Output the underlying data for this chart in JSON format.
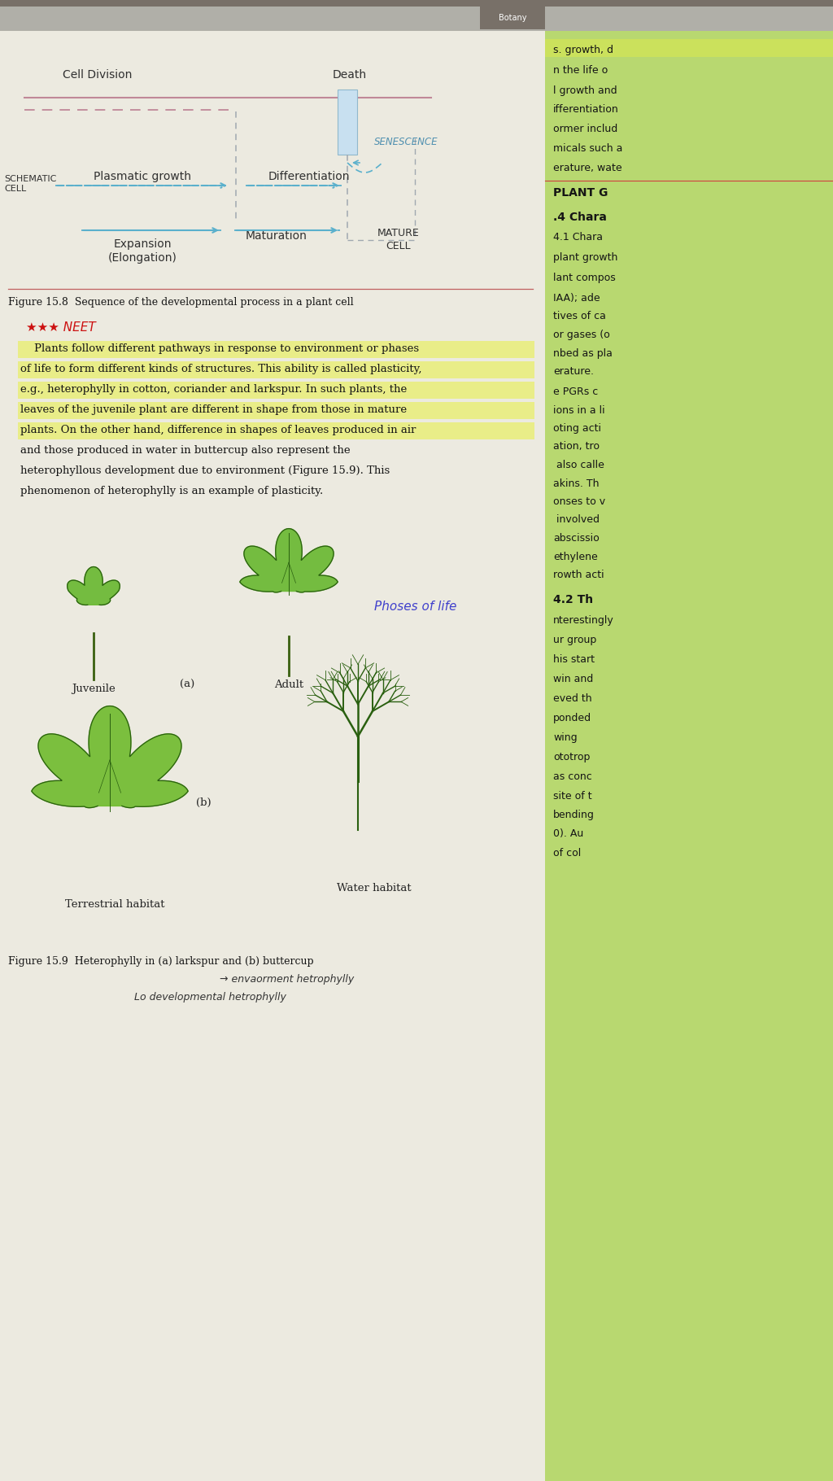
{
  "title_fig8": "Figure 15.8  Sequence of the developmental process in a plant cell",
  "title_fig9": "Figure 15.9  Heterophylly in (a) larkspur and (b) buttercup",
  "diagram": {
    "cell_division_label": "Cell Division",
    "death_label": "Death",
    "senescence_label": "SENESCENCE",
    "plasmatic_growth_label": "Plasmatic growth",
    "differentiation_label": "Differentiation",
    "expansion_label": "Expansion\n(Elongation)",
    "maturation_label": "Maturation",
    "mature_cell_label": "MATURE\nCELL",
    "schematic_label": "SCHEMATIC\nCELL",
    "arrow_color": "#5ab0cc",
    "pink_line_color": "#c08898",
    "death_rect_color": "#c8e0f0",
    "senescence_color": "#5090b0"
  },
  "highlight_color": "#e8f040",
  "body_paragraph": [
    "    Plants follow different pathways in response to environment or phases",
    "of life to form different kinds of structures. This ability is called plasticity,",
    "e.g., heterophylly in cotton, coriander and larkspur. In such plants, the",
    "leaves of the juvenile plant are different in shape from those in mature",
    "plants. On the other hand, difference in shapes of leaves produced in air",
    "and those produced in water in buttercup also represent the",
    "heterophyllous development due to environment (Figure 15.9). This",
    "phenomenon of heterophylly is an example of plasticity."
  ],
  "annotation_neet": "★★★ NEET",
  "annotation_phases": "Phoses of life",
  "annotation_env": "→ envaorment hetrophylly",
  "annotation_dev": "Lo developmental hetrophylly",
  "leaf_fill": "#6ab832",
  "leaf_edge": "#2a6010",
  "leaf_fill2": "#78c030",
  "page_color": "#e8e8e0",
  "right_panel_color": "#b8d870",
  "spine_color": "#909090",
  "right_texts": [
    "s. growth, d",
    "n the life o",
    "l growth and",
    "ifferentiation",
    "ormer includ",
    "micals such a",
    "erature, wate",
    "PLANT G",
    ".4 Chara",
    "4.1 Chara",
    "plant growth",
    "lant compos",
    "IAA); ade",
    "tives of ca",
    "or gases (o",
    "nbed as pla",
    "erature.",
    "e PGRs c",
    "ions in a li",
    "oting acti",
    "ation, tro",
    " also calle",
    "akins. Th",
    "onses to v",
    " involved",
    "abscissio",
    "ethylene",
    "rowth acti",
    "4.2 Th",
    "nterestingly",
    "ur group",
    "his start",
    "win and",
    "eved th",
    "ponded",
    "wing",
    "ototrop",
    "as conc",
    "site of t",
    "bending",
    "0). Au",
    "of col"
  ]
}
